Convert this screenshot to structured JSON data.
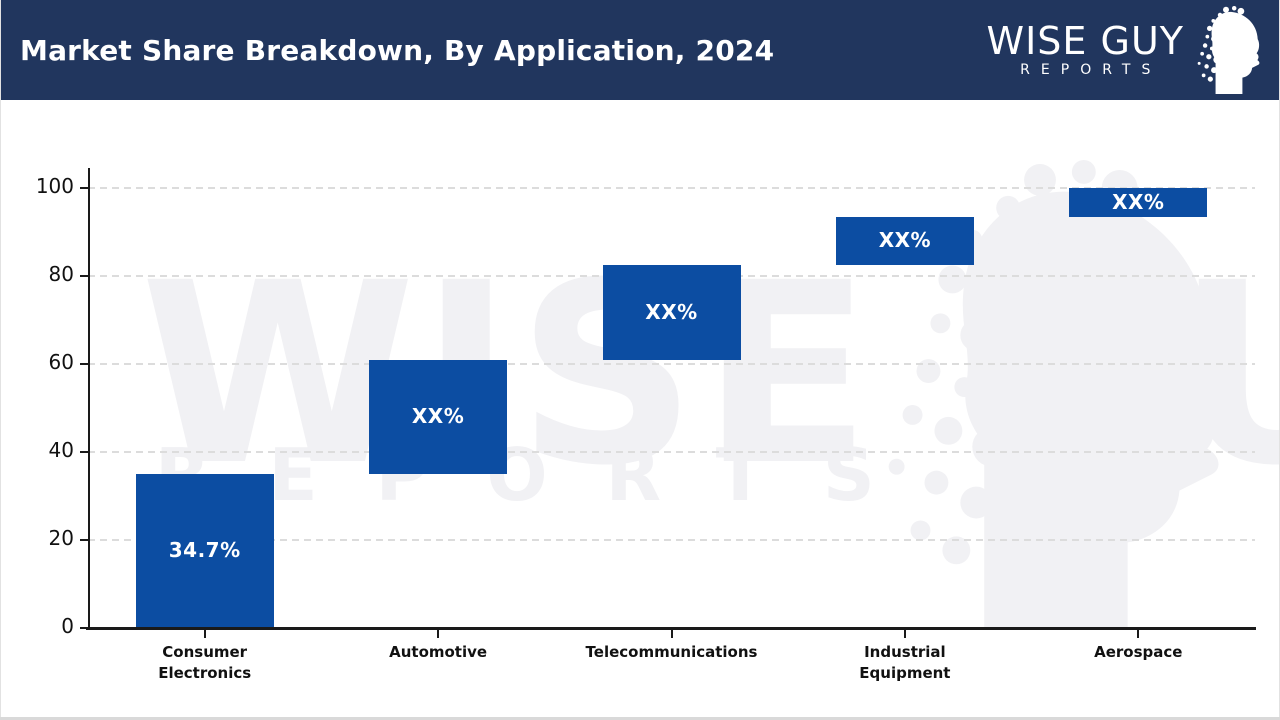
{
  "header": {
    "title": "Market Share Breakdown, By Application, 2024",
    "logo": {
      "line1": "WISE GUY",
      "line2": "REPORTS"
    }
  },
  "watermark": {
    "line1": "WISE GUY",
    "line2": "REPORTS"
  },
  "colors": {
    "header_bg": "#21365E",
    "bar": "#0C4DA2",
    "grid": "#DCDCDC",
    "axis": "#1A1A1A",
    "bar_label_text": "#FFFFFF",
    "watermark": "#F1F1F4"
  },
  "chart_data": {
    "type": "bar",
    "subtype": "waterfall",
    "title": "Market Share Breakdown, By Application, 2024",
    "categories": [
      "Consumer\nElectronics",
      "Automotive",
      "Telecommunications",
      "Industrial\nEquipment",
      "Aerospace"
    ],
    "segments": [
      {
        "category": "Consumer Electronics",
        "start": 0,
        "end": 34.7,
        "label": "34.7%"
      },
      {
        "category": "Automotive",
        "start": 34.7,
        "end": 60.6,
        "label": "XX%"
      },
      {
        "category": "Telecommunications",
        "start": 60.6,
        "end": 82.3,
        "label": "XX%"
      },
      {
        "category": "Industrial Equipment",
        "start": 82.3,
        "end": 93.1,
        "label": "XX%"
      },
      {
        "category": "Aerospace",
        "start": 93.1,
        "end": 99.8,
        "label": "XX%"
      }
    ],
    "yticks": [
      0,
      20,
      40,
      60,
      80,
      100
    ],
    "ylim": [
      0,
      104.5
    ],
    "xlabel": "",
    "ylabel": "",
    "grid": "horizontal-dashed",
    "legend": false
  }
}
